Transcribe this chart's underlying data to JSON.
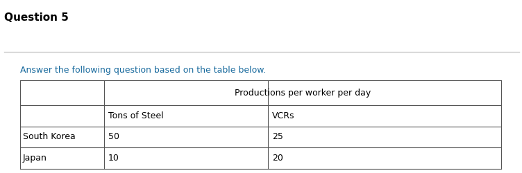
{
  "title": "Question 5",
  "subtitle": "Answer the following question based on the table below.",
  "subtitle_color": "#1a6b9e",
  "header_merged": "Productions per worker per day",
  "col_headers": [
    "Tons of Steel",
    "VCRs"
  ],
  "row_labels": [
    "South Korea",
    "Japan"
  ],
  "table_data": [
    [
      "50",
      "25"
    ],
    [
      "10",
      "20"
    ]
  ],
  "bg_color": "#ffffff",
  "border_color": "#555555",
  "title_color": "#000000",
  "fig_width": 7.52,
  "fig_height": 2.5,
  "dpi": 100
}
